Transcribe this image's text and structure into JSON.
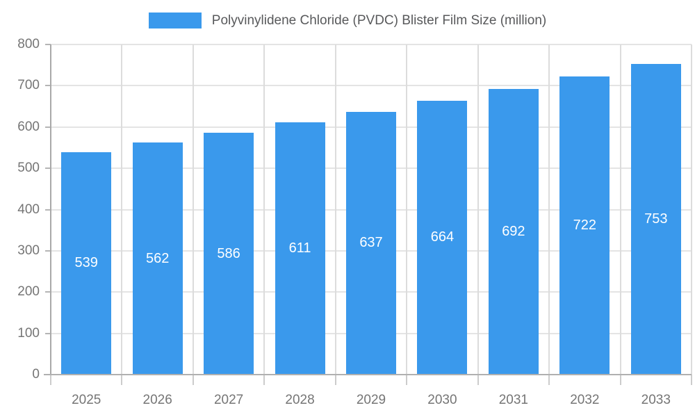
{
  "legend": {
    "label": "Polyvinylidene Chloride (PVDC) Blister Film Size (million)",
    "swatch_color": "#3A99EC"
  },
  "colors": {
    "bar": "#3A99EC",
    "axis": "#a9a9a9",
    "gridline": "#e4e4e4",
    "tick_label": "#757575",
    "legend_text": "#58595b",
    "value_label": "#ffffff"
  },
  "chart_data": {
    "type": "bar",
    "title": "Polyvinylidene Chloride (PVDC) Blister Film Size (million)",
    "categories": [
      "2025",
      "2026",
      "2027",
      "2028",
      "2029",
      "2030",
      "2031",
      "2032",
      "2033"
    ],
    "values": [
      539,
      562,
      586,
      611,
      637,
      664,
      692,
      722,
      753
    ],
    "xlabel": "",
    "ylabel": "",
    "ylim": [
      0,
      800
    ],
    "ytick_step": 100,
    "ytick_labels": [
      "0",
      "100",
      "200",
      "300",
      "400",
      "500",
      "600",
      "700",
      "800"
    ],
    "grid": true,
    "legend_position": "top-center",
    "value_label_position": "inside-center"
  }
}
